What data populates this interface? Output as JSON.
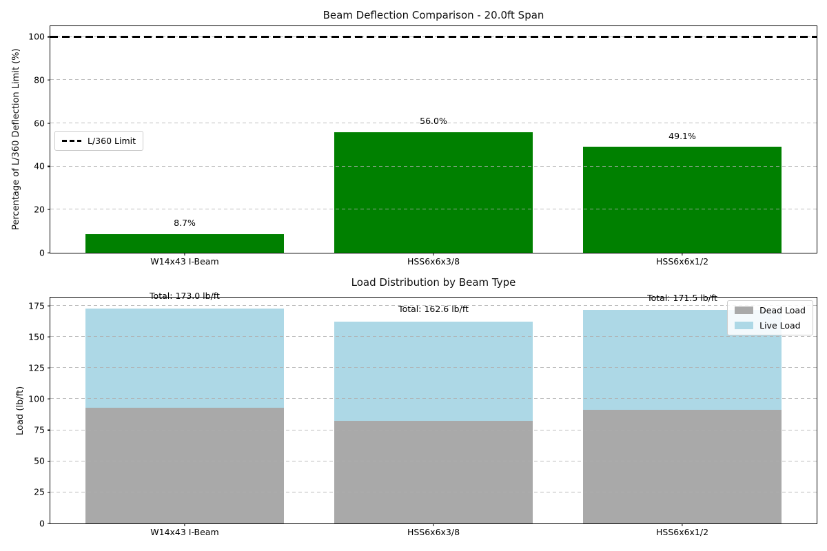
{
  "figure": {
    "background": "#ffffff"
  },
  "chart_data": [
    {
      "type": "bar",
      "title": "Beam Deflection Comparison - 20.0ft Span",
      "ylabel": "Percentage of L/360 Deflection Limit (%)",
      "xlabel": "",
      "categories": [
        "W14x43 I-Beam",
        "HSS6x6x3/8",
        "HSS6x6x1/2"
      ],
      "values": [
        8.7,
        56.0,
        49.1
      ],
      "annotations": [
        "8.7%",
        "56.0%",
        "49.1%"
      ],
      "bar_color": "#008000",
      "yticks": [
        0,
        20,
        40,
        60,
        80,
        100
      ],
      "ylim": [
        0,
        105
      ],
      "grid": "horizontal-dashed",
      "reference_line": {
        "value": 100,
        "label": "L/360 Limit",
        "color": "#000000",
        "style": "dashed"
      },
      "legend": {
        "position": "center-left",
        "entries": [
          {
            "label": "L/360 Limit",
            "type": "dash",
            "color": "#000000"
          }
        ]
      }
    },
    {
      "type": "stacked-bar",
      "title": "Load Distribution by Beam Type",
      "ylabel": "Load (lb/ft)",
      "xlabel": "",
      "categories": [
        "W14x43 I-Beam",
        "HSS6x6x3/8",
        "HSS6x6x1/2"
      ],
      "series": [
        {
          "name": "Dead Load",
          "color": "#A9A9A9",
          "values": [
            93.0,
            82.6,
            91.5
          ]
        },
        {
          "name": "Live Load",
          "color": "#ADD8E6",
          "values": [
            80.0,
            80.0,
            80.0
          ]
        }
      ],
      "totals": [
        173.0,
        162.6,
        171.5
      ],
      "annotations": [
        "Total: 173.0 lb/ft",
        "Total: 162.6 lb/ft",
        "Total: 171.5 lb/ft"
      ],
      "yticks": [
        0,
        25,
        50,
        75,
        100,
        125,
        150,
        175
      ],
      "ylim": [
        0,
        181.7
      ],
      "grid": "horizontal-dashed",
      "legend": {
        "position": "top-right",
        "entries": [
          {
            "label": "Dead Load",
            "type": "patch",
            "color": "#A9A9A9"
          },
          {
            "label": "Live Load",
            "type": "patch",
            "color": "#ADD8E6"
          }
        ]
      }
    }
  ]
}
